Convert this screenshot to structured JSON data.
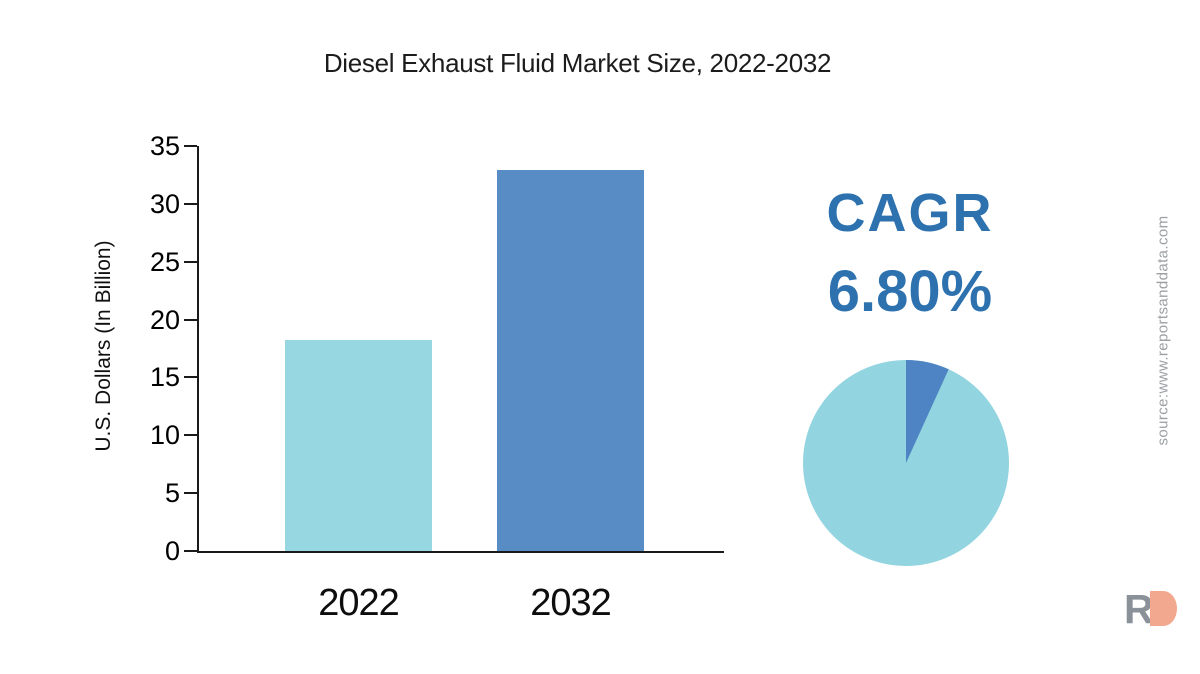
{
  "title": "Diesel Exhaust Fluid Market Size, 2022-2032",
  "chart_data": [
    {
      "type": "bar",
      "title": "Diesel Exhaust Fluid Market Size, 2022-2032",
      "categories": [
        "2022",
        "2032"
      ],
      "values": [
        18.2,
        32.9
      ],
      "xlabel": "",
      "ylabel": "U.S. Dollars (In Billion)",
      "ylim": [
        0,
        35
      ],
      "yticks": [
        0,
        5,
        10,
        15,
        20,
        25,
        30,
        35
      ],
      "grid": false,
      "legend": "none",
      "bar_colors": [
        "#97D7E2",
        "#578CC5"
      ]
    },
    {
      "type": "pie",
      "values": [
        6.8,
        93.2
      ],
      "labels": [
        "CAGR growth slice",
        "remainder"
      ],
      "colors": [
        "#4F84C4",
        "#92D4E0"
      ],
      "start_angle_deg": 0,
      "direction": "clockwise",
      "annotation": "CAGR 6.80%"
    }
  ],
  "cagr": {
    "label": "CAGR",
    "value": "6.80%",
    "color": "#2D72AE"
  },
  "source": {
    "text": "source:www.reportsanddata.com"
  },
  "logo": {
    "letter_r": "R",
    "letter_d": "D"
  }
}
